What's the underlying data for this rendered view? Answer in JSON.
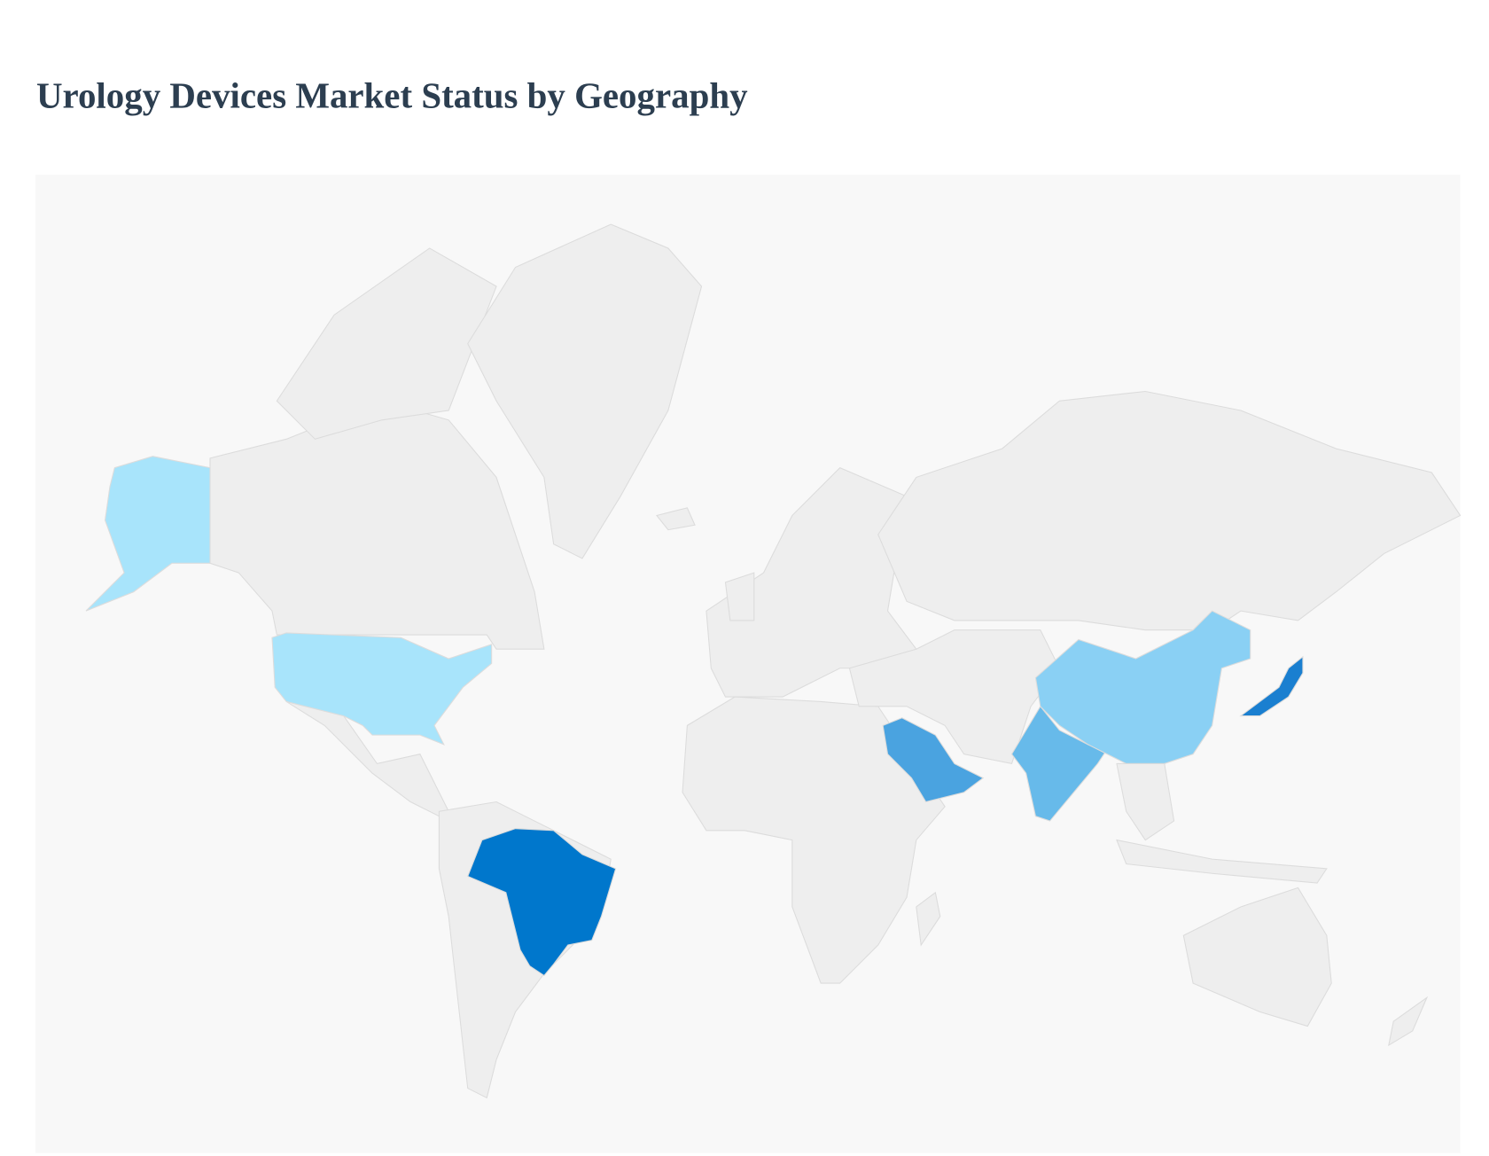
{
  "header": {
    "title": "Urology Devices Market Status by Geography"
  }
}
